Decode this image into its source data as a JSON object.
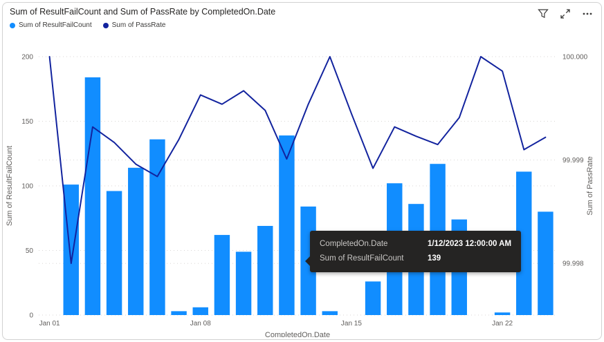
{
  "header": {
    "title": "Sum of ResultFailCount and Sum of PassRate by CompletedOn.Date"
  },
  "toolbar": {
    "icons": [
      {
        "name": "filter-icon",
        "glyph": "funnel"
      },
      {
        "name": "focus-mode-icon",
        "glyph": "diagonal-expand-arrows"
      },
      {
        "name": "more-options-icon",
        "glyph": "ellipsis"
      }
    ]
  },
  "legend": {
    "items": [
      {
        "label": "Sum of ResultFailCount",
        "color": "#118DFF"
      },
      {
        "label": "Sum of PassRate",
        "color": "#12239E"
      }
    ]
  },
  "axes": {
    "left": {
      "title": "Sum of ResultFailCount",
      "ticks": [
        "0",
        "50",
        "100",
        "150",
        "200"
      ]
    },
    "right": {
      "title": "Sum of PassRate",
      "ticks": [
        "99.998",
        "99.999",
        "100.000"
      ]
    },
    "x": {
      "title": "CompletedOn.Date",
      "ticks": [
        {
          "index": 0,
          "label": "Jan 01"
        },
        {
          "index": 7,
          "label": "Jan 08"
        },
        {
          "index": 14,
          "label": "Jan 15"
        },
        {
          "index": 21,
          "label": "Jan 22"
        }
      ]
    }
  },
  "tooltip": {
    "rows": [
      {
        "label": "CompletedOn.Date",
        "value": "1/12/2023 12:00:00 AM"
      },
      {
        "label": "Sum of ResultFailCount",
        "value": "139"
      }
    ]
  },
  "colors": {
    "bar": "#118DFF",
    "line": "#12239E",
    "grid": "#d8d6d4",
    "tick": "#605e5c",
    "title": "#252423",
    "tooltip_bg": "#252423"
  },
  "chart_data": {
    "type": "combo",
    "title": "Sum of ResultFailCount and Sum of PassRate by CompletedOn.Date",
    "xlabel": "CompletedOn.Date",
    "categories": [
      "Jan 01",
      "Jan 02",
      "Jan 03",
      "Jan 04",
      "Jan 05",
      "Jan 06",
      "Jan 07",
      "Jan 08",
      "Jan 09",
      "Jan 10",
      "Jan 11",
      "Jan 12",
      "Jan 13",
      "Jan 14",
      "Jan 15",
      "Jan 16",
      "Jan 17",
      "Jan 18",
      "Jan 19",
      "Jan 20",
      "Jan 21",
      "Jan 22",
      "Jan 23",
      "Jan 24"
    ],
    "series": [
      {
        "name": "Sum of ResultFailCount",
        "type": "bar",
        "axis": "left",
        "values": [
          0,
          101,
          184,
          96,
          114,
          136,
          3,
          6,
          62,
          49,
          69,
          139,
          84,
          3,
          0,
          26,
          102,
          86,
          117,
          74,
          0,
          2,
          111,
          80
        ]
      },
      {
        "name": "Sum of PassRate",
        "type": "line",
        "axis": "right",
        "values": [
          100.0,
          99.998,
          99.99932,
          99.99917,
          99.99896,
          99.99884,
          99.9992,
          99.99963,
          99.99954,
          99.99967,
          99.99948,
          99.99901,
          99.99954,
          100.0,
          99.99945,
          99.99892,
          99.99932,
          99.99923,
          99.99915,
          99.99941,
          100.0,
          99.99986,
          99.9991,
          99.99922
        ]
      }
    ],
    "left_ylim": [
      0,
      200
    ],
    "right_ylim": [
      99.9975,
      100.0
    ],
    "legend_position": "top-left",
    "grid": "horizontal-dotted",
    "highlighted_index": 11
  }
}
